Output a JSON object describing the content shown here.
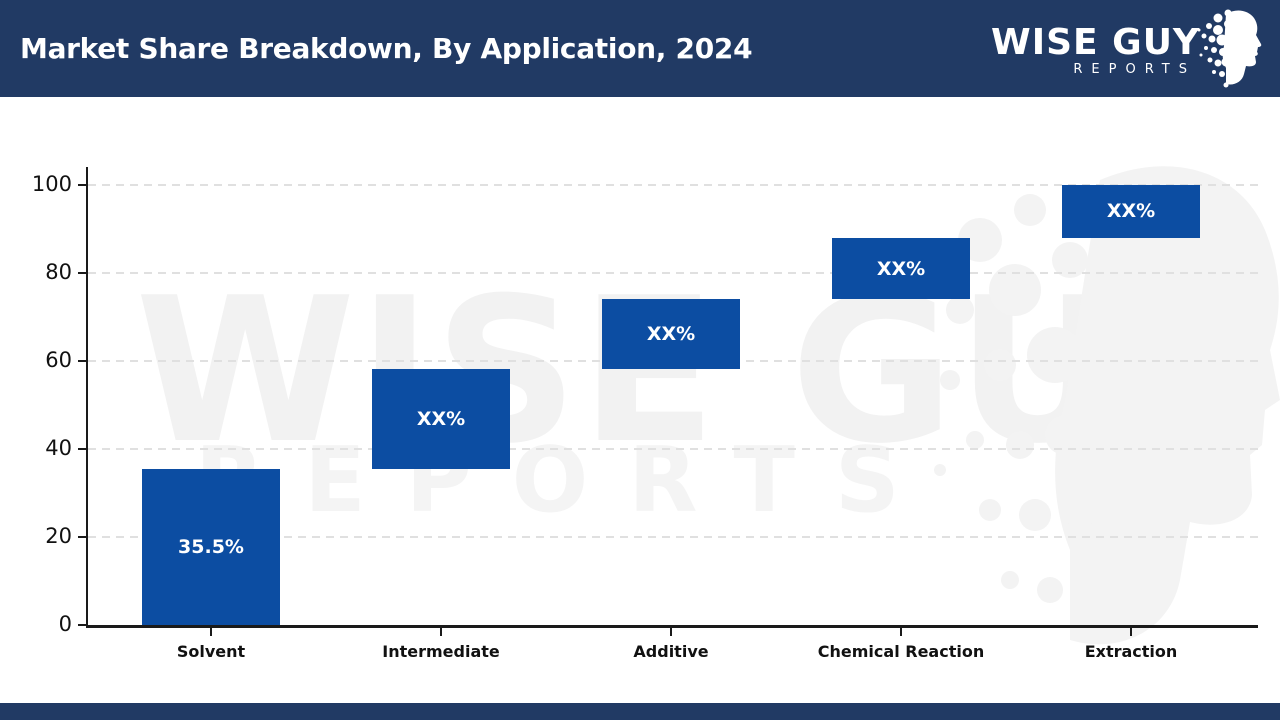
{
  "header": {
    "title": "Market Share Breakdown, By Application, 2024",
    "logo": {
      "wordmark": "WISE GUY",
      "subtitle": "REPORTS"
    }
  },
  "watermark": {
    "line1": "WISE GUY",
    "line2": "REPORTS"
  },
  "chart_data": {
    "type": "bar",
    "subtype": "waterfall",
    "title": "Market Share Breakdown, By Application, 2024",
    "xlabel": "",
    "ylabel": "",
    "categories": [
      "Solvent",
      "Intermediate",
      "Additive",
      "Chemical Reaction",
      "Extraction"
    ],
    "segments": [
      {
        "category": "Solvent",
        "start": 0,
        "end": 35.5,
        "label": "35.5%"
      },
      {
        "category": "Intermediate",
        "start": 35.5,
        "end": 58.2,
        "label": "XX%"
      },
      {
        "category": "Additive",
        "start": 58.2,
        "end": 74.0,
        "label": "XX%"
      },
      {
        "category": "Chemical Reaction",
        "start": 74.0,
        "end": 88.0,
        "label": "XX%"
      },
      {
        "category": "Extraction",
        "start": 88.0,
        "end": 100.0,
        "label": "XX%"
      }
    ],
    "ylim": [
      0,
      100
    ],
    "yticks": [
      0,
      20,
      40,
      60,
      80,
      100
    ],
    "grid": "horizontal-dashed",
    "legend": "none"
  },
  "colors": {
    "header_bg": "#213a64",
    "footer_bg": "#213a64",
    "bar": "#0c4da2",
    "bar_label": "#ffffff",
    "axis": "#1a1a1a",
    "gridline": "#e0e0e0",
    "tick_text": "#111111",
    "watermark": "#f2f2f2"
  }
}
